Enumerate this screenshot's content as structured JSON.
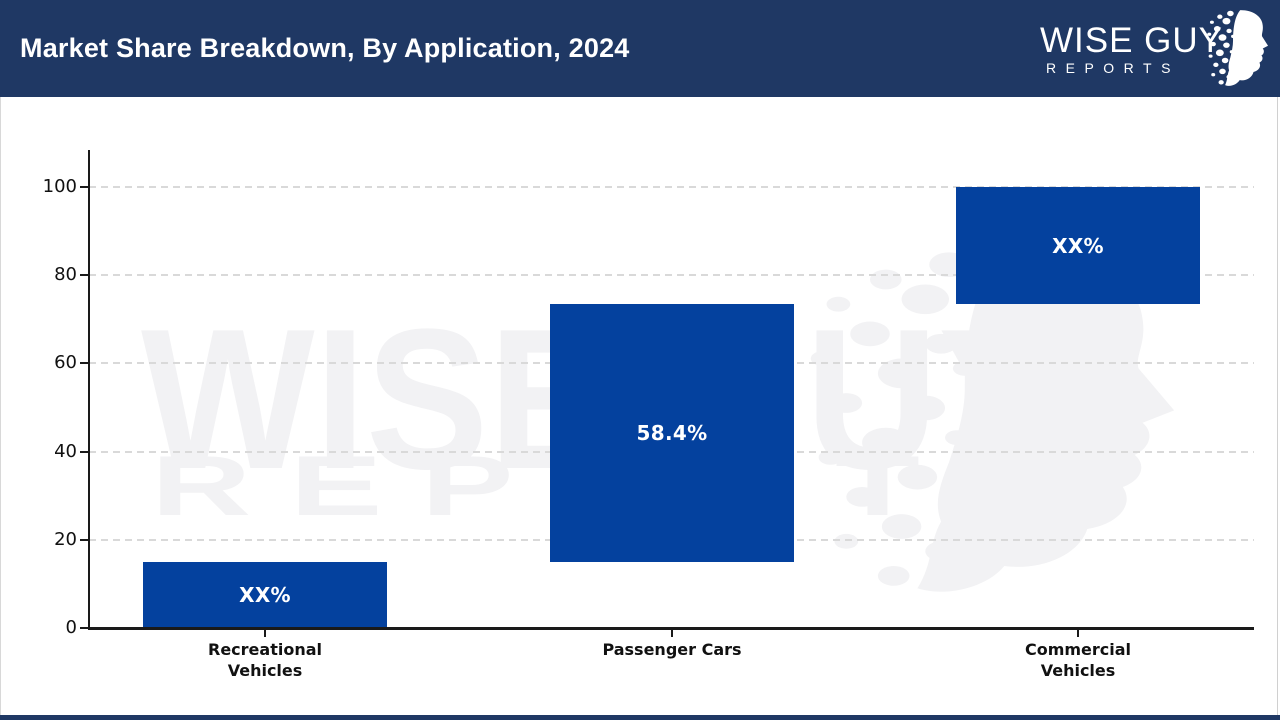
{
  "header": {
    "title": "Market Share Breakdown, By Application, 2024",
    "logo": {
      "line1": "WISE GUY",
      "line2": "REPORTS"
    }
  },
  "watermark": {
    "line1": "WISE GUY",
    "line2": "R E P O R T S"
  },
  "chart_data": {
    "type": "bar",
    "subtype": "floating-waterfall",
    "title": "Market Share Breakdown, By Application, 2024",
    "categories": [
      [
        "Recreational",
        "Vehicles"
      ],
      [
        "Passenger Cars"
      ],
      [
        "Commercial",
        "Vehicles"
      ]
    ],
    "bars": [
      {
        "category": "Recreational Vehicles",
        "base": 0,
        "top": 15,
        "value": 15,
        "label": "XX%"
      },
      {
        "category": "Passenger Cars",
        "base": 15,
        "top": 73.4,
        "value": 58.4,
        "label": "58.4%"
      },
      {
        "category": "Commercial Vehicles",
        "base": 73.4,
        "top": 100,
        "value": 26.6,
        "label": "XX%"
      }
    ],
    "yticks": [
      0,
      20,
      40,
      60,
      80,
      100
    ],
    "ylim": [
      0,
      108.5
    ],
    "xlabel": "",
    "ylabel": "",
    "grid": "horizontal-dashed",
    "legend": "none",
    "bar_color": "#04419E",
    "bar_label_color": "#FFFFFF"
  },
  "colors": {
    "header_bg": "#1F3864",
    "footer_bg": "#1F3864",
    "bar": "#04419E",
    "grid": "#D9D9D9",
    "axis": "#1A1A1A",
    "watermark": "#F2F2F4"
  }
}
